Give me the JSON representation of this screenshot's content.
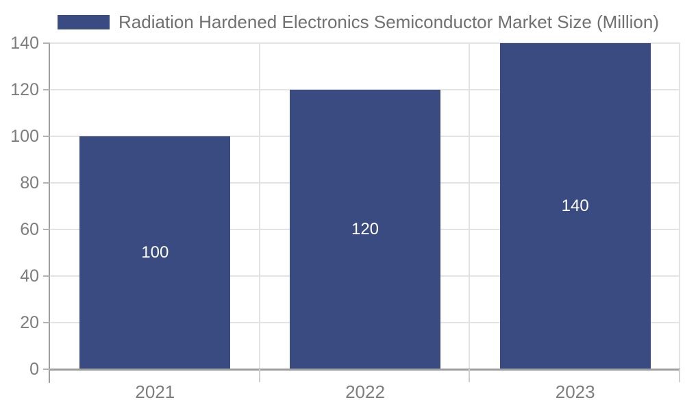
{
  "legend": {
    "label": "Radiation Hardened Electronics Semiconductor Market Size (Million)"
  },
  "colors": {
    "bar": "#394B80",
    "grid": "#e3e3e3",
    "axis": "#9e9e9e",
    "tick": "#b3b3b3",
    "boundary_tick": "#cfcfcf",
    "tick_label": "#7d7d7d",
    "legend_text": "#707070",
    "data_label": "#ffffff",
    "background": "#ffffff"
  },
  "chart_data": {
    "type": "bar",
    "title": "",
    "categories": [
      "2021",
      "2022",
      "2023"
    ],
    "values": [
      100,
      120,
      140
    ],
    "series": [
      {
        "name": "Radiation Hardened Electronics Semiconductor Market Size (Million)",
        "values": [
          100,
          120,
          140
        ]
      }
    ],
    "bar_labels": [
      "100",
      "120",
      "140"
    ],
    "xlabel": "",
    "ylabel": "",
    "ylim": [
      0,
      140
    ],
    "yticks": [
      0,
      20,
      40,
      60,
      80,
      100,
      120,
      140
    ],
    "grid": true,
    "legend_position": "top-left"
  }
}
